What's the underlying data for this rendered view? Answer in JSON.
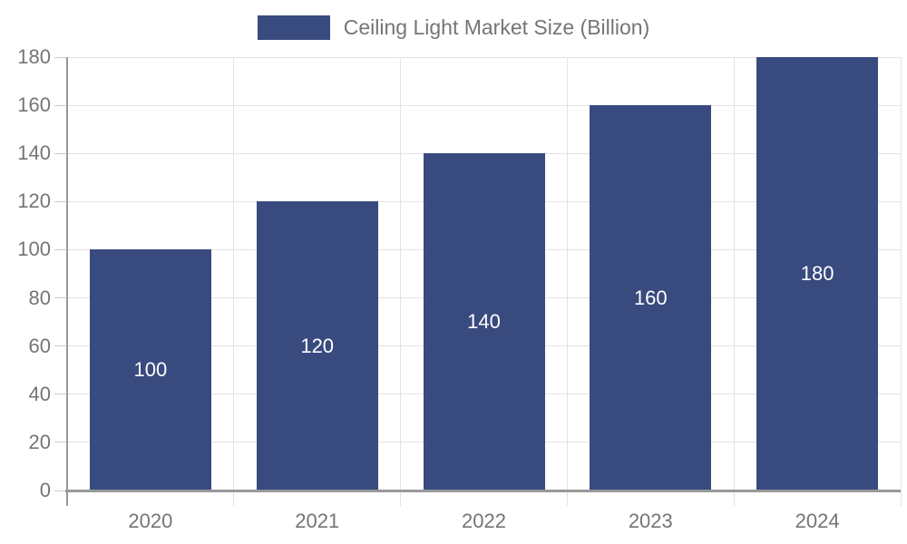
{
  "legend": {
    "label": "Ceiling Light Market Size (Billion)"
  },
  "chart_data": {
    "type": "bar",
    "title": "Ceiling Light Market Size (Billion)",
    "series_name": "Ceiling Light Market Size (Billion)",
    "categories": [
      "2020",
      "2021",
      "2022",
      "2023",
      "2024"
    ],
    "values": [
      100,
      120,
      140,
      160,
      180
    ],
    "value_labels": [
      "100",
      "120",
      "140",
      "160",
      "180"
    ],
    "xlabel": "",
    "ylabel": "",
    "ylim": [
      0,
      180
    ],
    "yticks": [
      0,
      20,
      40,
      60,
      80,
      100,
      120,
      140,
      160,
      180
    ],
    "grid": true,
    "legend_position": "top-center",
    "colors": {
      "bar": "#394A7F",
      "value_label": "#FFFFFF",
      "axis_line": "#999999",
      "grid_line": "#E3E3E3",
      "tick_mark": "#CCCCCC",
      "tick_label": "#757575",
      "legend_text": "#757575",
      "background": "#FFFFFF"
    }
  }
}
